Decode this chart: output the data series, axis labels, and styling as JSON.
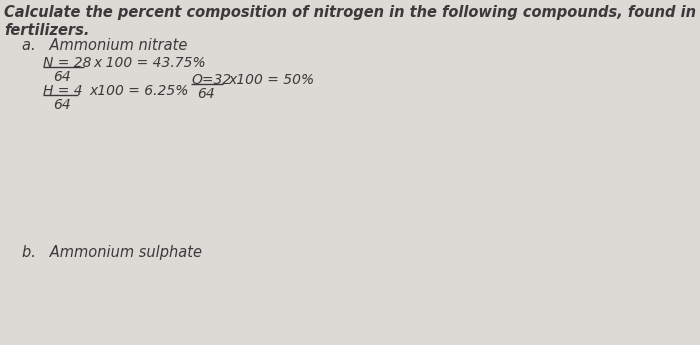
{
  "bg_color": "#ddd9d5",
  "text_color": "#3a3a3a",
  "title_line1": "Calculate the percent composition of nitrogen in the following compounds, found in",
  "title_line2": "fertilizers.",
  "section_a": "a.   Ammonium nitrate",
  "section_b": "b.   Ammonium sulphate",
  "title_fontsize": 10.5,
  "section_fontsize": 10.5,
  "math_fontsize": 10.0
}
